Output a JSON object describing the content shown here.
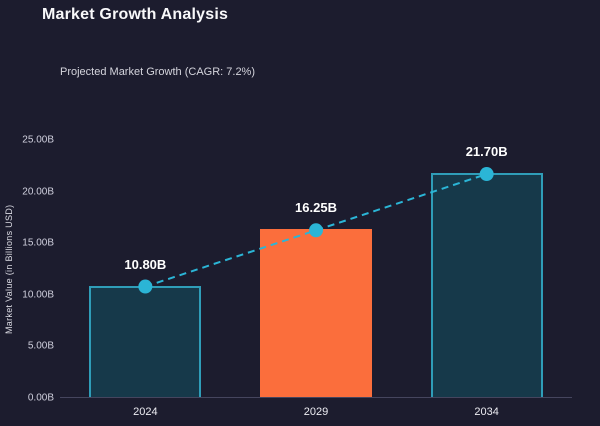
{
  "header": {
    "title": "Market Growth Analysis",
    "subtitle": "Projected Market Growth (CAGR: 7.2%)"
  },
  "chart_data": {
    "type": "bar",
    "title": "Market Growth Analysis",
    "subtitle": "Projected Market Growth (CAGR: 7.2%)",
    "categories": [
      "2024",
      "2029",
      "2034"
    ],
    "values": [
      10.8,
      16.25,
      21.7
    ],
    "value_labels": [
      "10.80B",
      "16.25B",
      "21.70B"
    ],
    "xlabel": "",
    "ylabel": "Market Value (in Billions USD)",
    "ylim": [
      0,
      25
    ],
    "yticks": [
      "0.00B",
      "5.00B",
      "10.00B",
      "15.00B",
      "20.00B",
      "25.00B"
    ],
    "grid": false,
    "legend_position": "none",
    "bar_colors": [
      "#16394a",
      "#fb6e3c",
      "#16394a"
    ],
    "bar_border_colors": [
      "#2f9db8",
      "#fb6e3c",
      "#2f9db8"
    ],
    "trend_line_color": "#2bb5d6",
    "marker_color": "#2bb5d6",
    "background_color": "#1c1c2e"
  }
}
